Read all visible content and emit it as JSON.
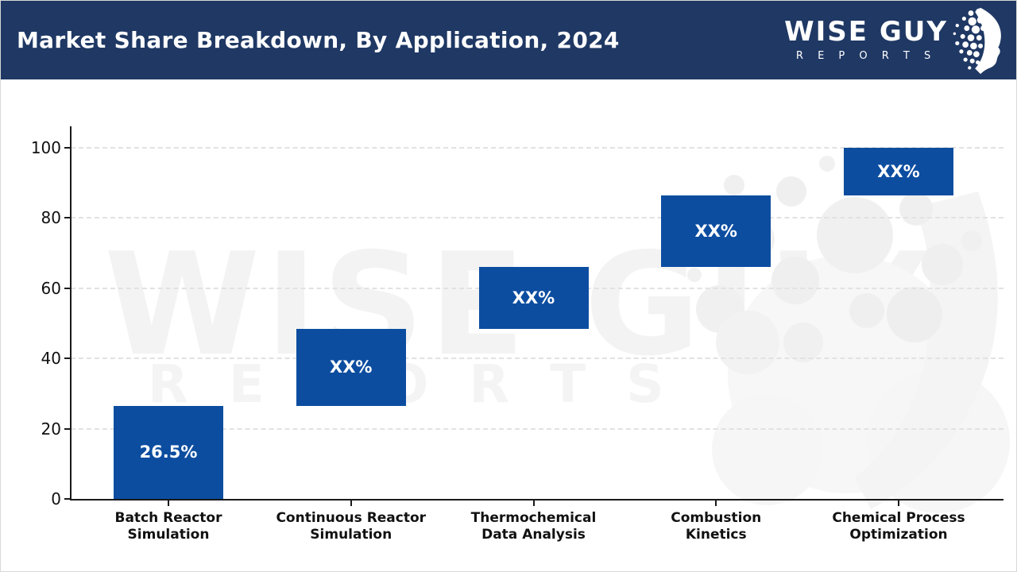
{
  "header": {
    "title": "Market Share Breakdown, By Application, 2024",
    "logo": {
      "name_top": "WISE GUY",
      "name_bottom": "R E P O R T S"
    }
  },
  "watermark": {
    "text_top": "WISE GUY",
    "text_bottom": "R E P O R T S"
  },
  "chart_data": {
    "type": "bar",
    "variant": "waterfall",
    "title": "Market Share Breakdown, By Application, 2024",
    "categories": [
      {
        "label": "Batch Reactor Simulation",
        "lines": [
          "Batch Reactor",
          "Simulation"
        ]
      },
      {
        "label": "Continuous Reactor Simulation",
        "lines": [
          "Continuous Reactor",
          "Simulation"
        ]
      },
      {
        "label": "Thermochemical Data Analysis",
        "lines": [
          "Thermochemical",
          "Data Analysis"
        ]
      },
      {
        "label": "Combustion Kinetics",
        "lines": [
          "Combustion",
          "Kinetics"
        ]
      },
      {
        "label": "Chemical Process Optimization",
        "lines": [
          "Chemical Process",
          "Optimization"
        ]
      }
    ],
    "segments": [
      {
        "category": "Batch Reactor Simulation",
        "start": 0,
        "end": 26.5,
        "label": "26.5%"
      },
      {
        "category": "Continuous Reactor Simulation",
        "start": 26.5,
        "end": 48.5,
        "label": "XX%"
      },
      {
        "category": "Thermochemical Data Analysis",
        "start": 48.5,
        "end": 66,
        "label": "XX%"
      },
      {
        "category": "Combustion Kinetics",
        "start": 66,
        "end": 86.5,
        "label": "XX%"
      },
      {
        "category": "Chemical Process Optimization",
        "start": 86.5,
        "end": 100,
        "label": "XX%"
      }
    ],
    "ylim": [
      0,
      100
    ],
    "yticks": [
      0,
      20,
      40,
      60,
      80,
      100
    ],
    "xlabel": "",
    "ylabel": "",
    "grid": "horizontal-dashed",
    "legend": "none",
    "colors": {
      "bar": "#0c4da0",
      "header_bg": "#1f3864",
      "grid": "#e2e2e2",
      "axis": "#1a1a1a",
      "bar_label": "#ffffff",
      "title_text": "#ffffff"
    }
  }
}
